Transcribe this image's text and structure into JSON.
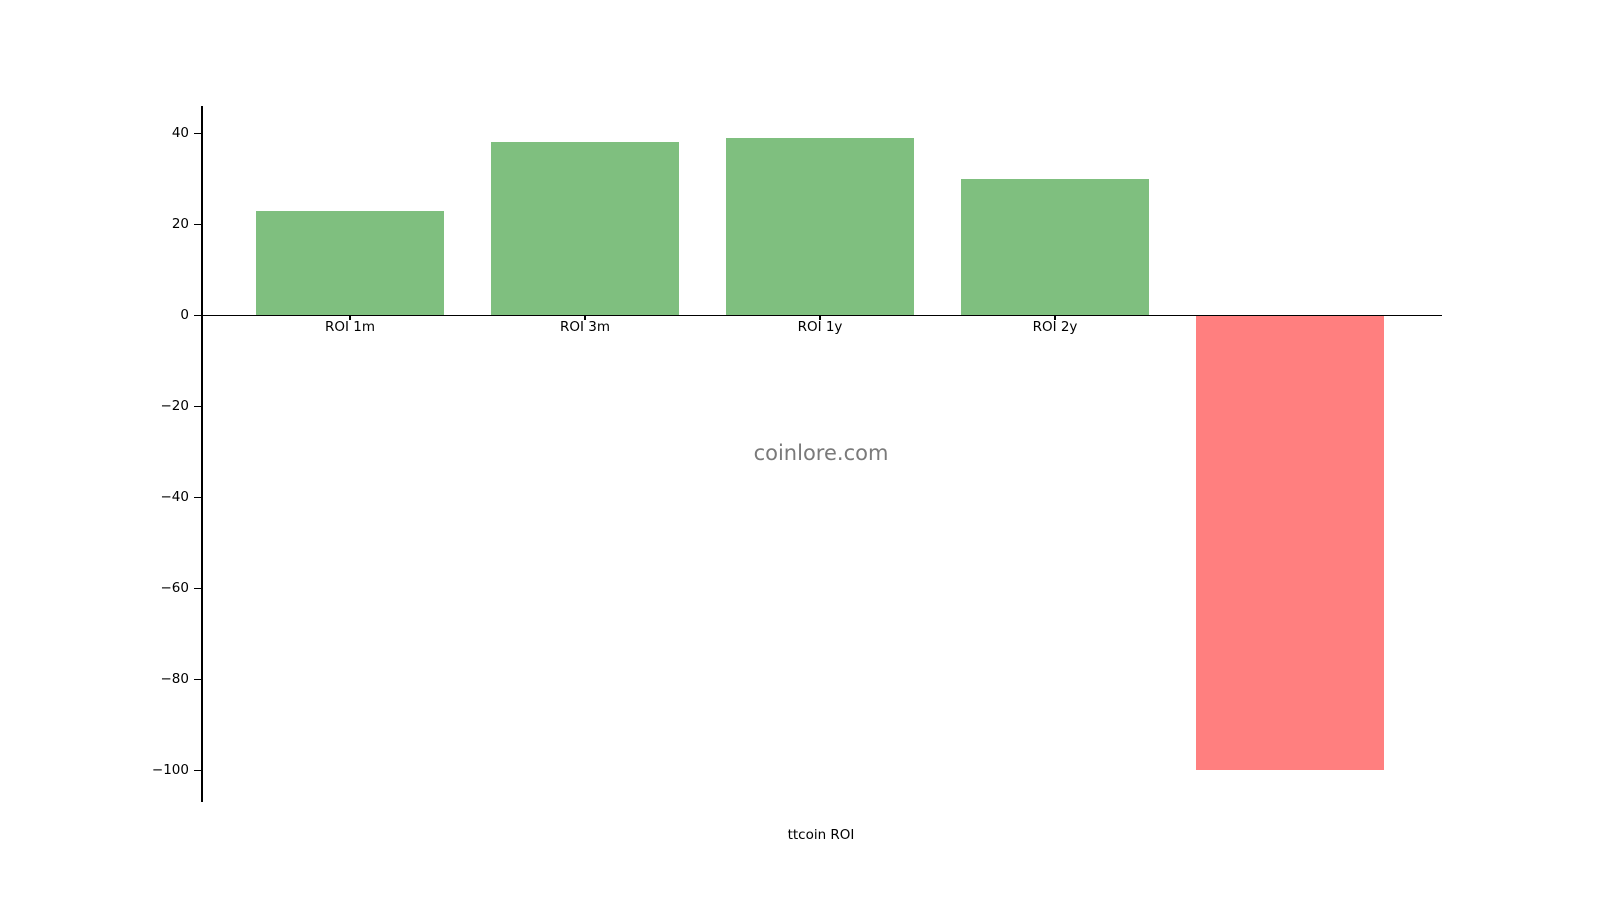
{
  "page": {
    "background": "#ffffff"
  },
  "watermark": {
    "text": "coinlore.com",
    "color": "#7a7a7a"
  },
  "chart_data": {
    "type": "bar",
    "title": "",
    "xlabel": "ttcoin ROI",
    "ylabel": "",
    "categories": [
      "ROI 1m",
      "ROI 3m",
      "ROI 1y",
      "ROI 2y",
      ""
    ],
    "values": [
      23,
      38,
      39,
      30,
      -100
    ],
    "bar_colors": [
      "#7fbf7f",
      "#7fbf7f",
      "#7fbf7f",
      "#7fbf7f",
      "#ff7f7f"
    ],
    "positive_color": "#7fbf7f",
    "negative_color": "#ff7f7f",
    "axis_color": "#000000",
    "text_color": "#000000",
    "ylim": [
      -107,
      46
    ],
    "yticks": [
      40,
      20,
      0,
      -20,
      -40,
      -60,
      -80,
      -100
    ],
    "ytick_labels": [
      "40",
      "20",
      "0",
      "−20",
      "−40",
      "−60",
      "−80",
      "−100"
    ],
    "grid": false,
    "legend_position": "none"
  }
}
